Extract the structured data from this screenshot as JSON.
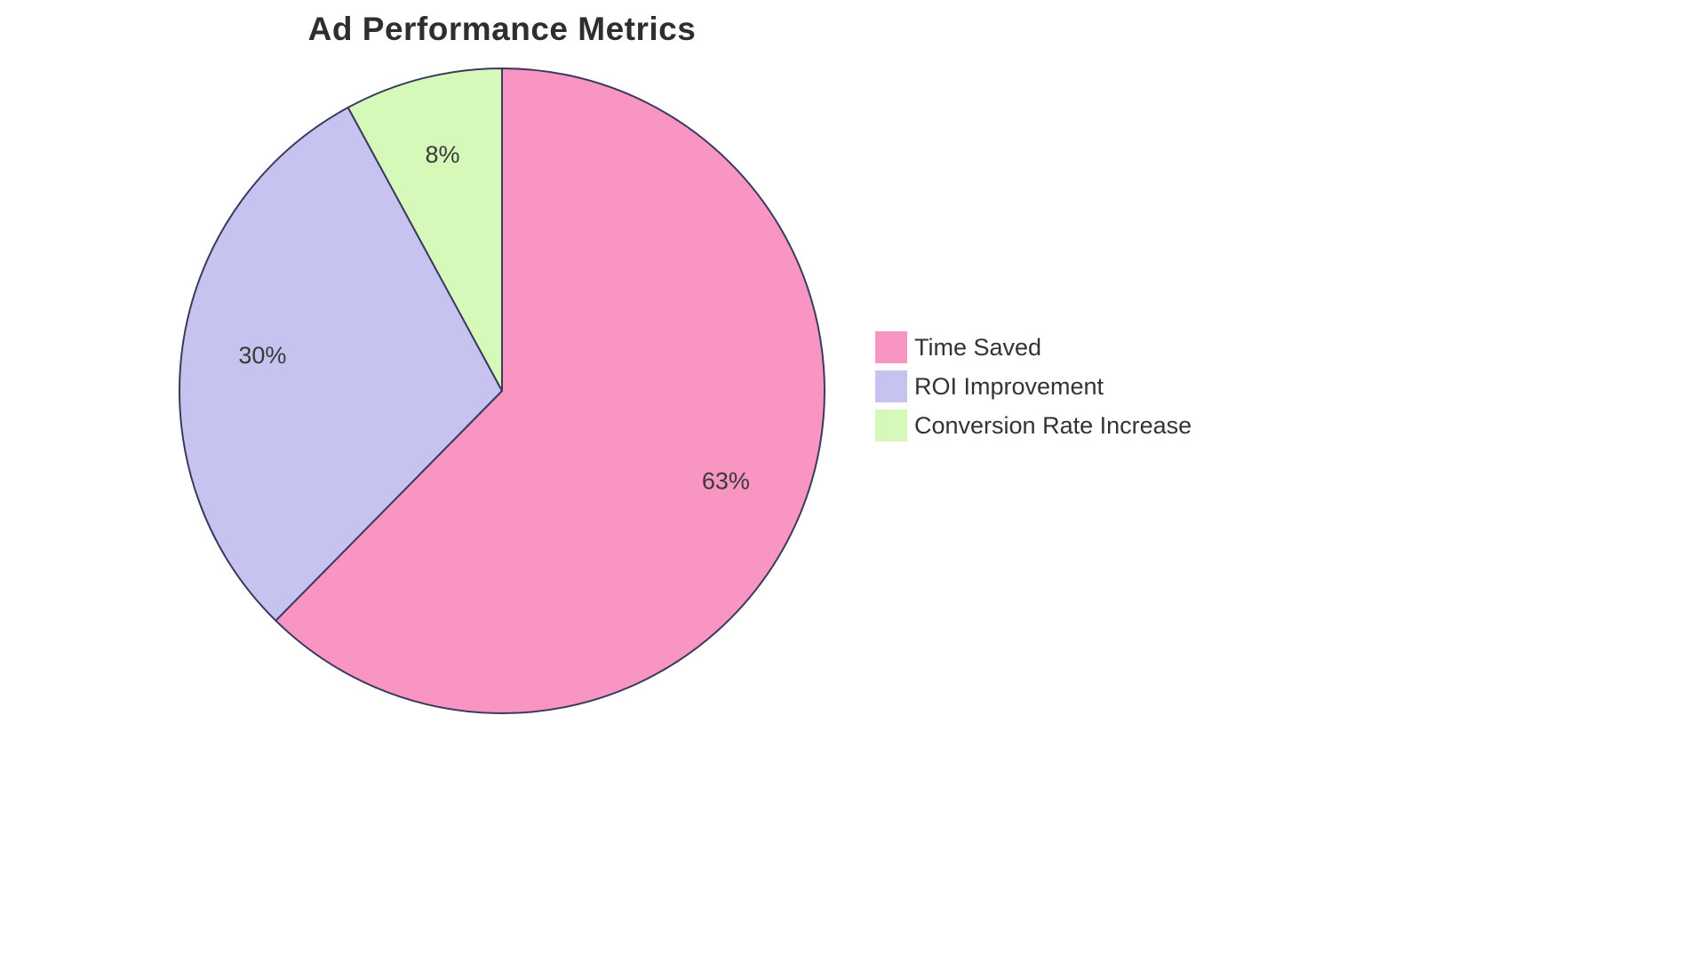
{
  "title": "Ad Performance Metrics",
  "chart_data": {
    "type": "pie",
    "title": "Ad Performance Metrics",
    "slices": [
      {
        "label": "Time Saved",
        "value": 63,
        "display": "63%",
        "color": "#F895C3"
      },
      {
        "label": "ROI Improvement",
        "value": 30,
        "display": "30%",
        "color": "#C7C3F1"
      },
      {
        "label": "Conversion Rate Increase",
        "value": 8,
        "display": "8%",
        "color": "#D6F8B8"
      }
    ],
    "start_angle_deg": 0,
    "direction": "clockwise",
    "stroke_color": "#3B3A5E",
    "label_color": "#3a3a3a",
    "legend_position": "right",
    "legend_labels": [
      "Time Saved",
      "ROI Improvement",
      "Conversion Rate Increase"
    ]
  }
}
